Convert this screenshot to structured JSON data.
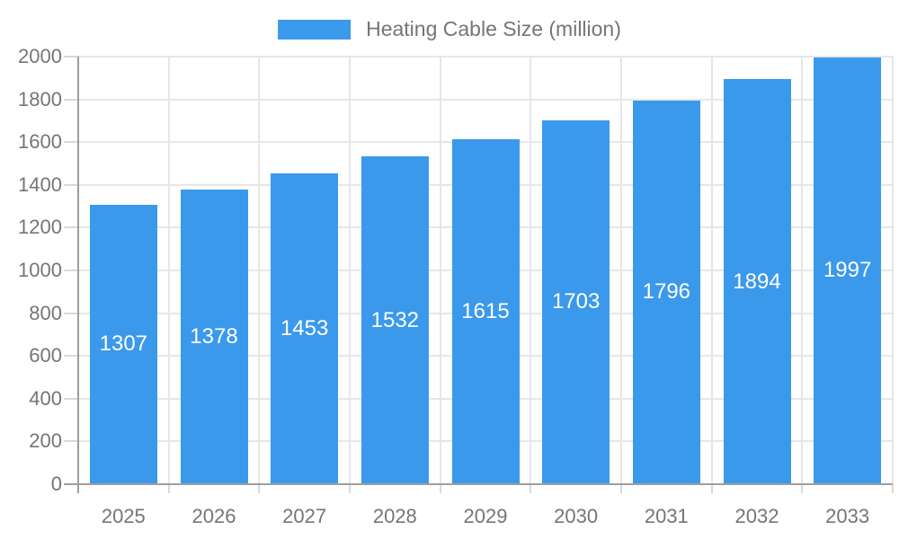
{
  "legend": {
    "label": "Heating Cable Size (million)"
  },
  "chart_data": {
    "type": "bar",
    "title": "Heating Cable Size (million)",
    "categories": [
      "2025",
      "2026",
      "2027",
      "2028",
      "2029",
      "2030",
      "2031",
      "2032",
      "2033"
    ],
    "values": [
      1307,
      1378,
      1453,
      1532,
      1615,
      1703,
      1796,
      1894,
      1997
    ],
    "xlabel": "",
    "ylabel": "",
    "ylim": [
      0,
      2000
    ],
    "ytick_step": 200,
    "grid": true,
    "legend_position": "top-center",
    "bar_color": "#3b99ec",
    "value_label_color": "#ffffff",
    "axis_label_color": "#757575",
    "grid_color": "#e6e6e6",
    "axis_line_color": "#9e9e9e"
  }
}
